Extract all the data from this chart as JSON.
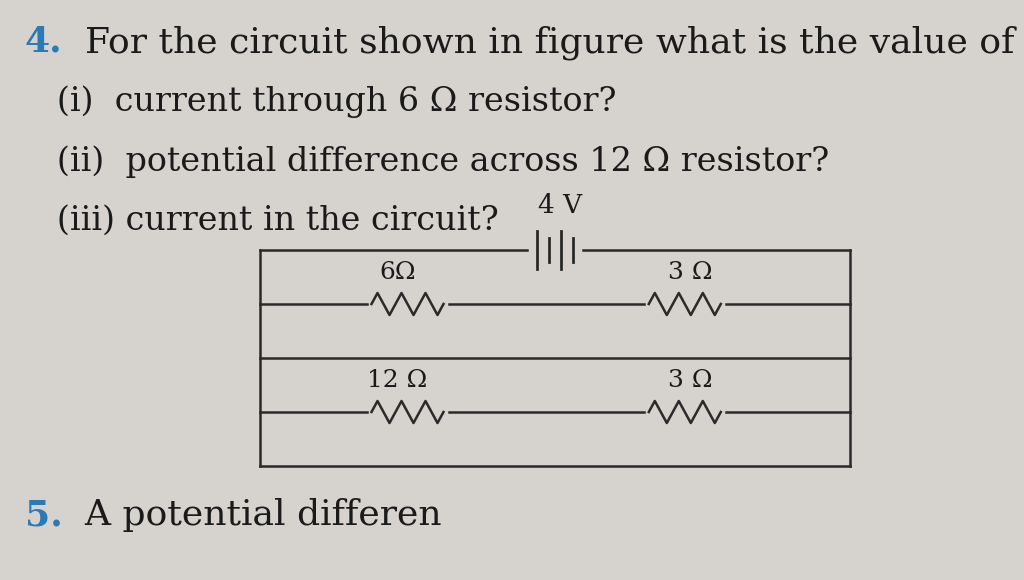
{
  "bg_color": "#d6d2ce",
  "text_color": "#1a1a1a",
  "number_color": "#2a7ab5",
  "question_number": "4.",
  "question_text": "  For the circuit shown in figure what is the value of",
  "sub_i": "   (i)  current through 6 Ω resistor?",
  "sub_ii": "   (ii)  potential difference across 12 Ω resistor?",
  "sub_iii": "   (iii) current in the circuit?",
  "battery_label": "4 V",
  "r1_label": "6Ω",
  "r2_label": "3 Ω",
  "r3_label": "12 Ω",
  "r4_label": "3 Ω",
  "next_number": "5.",
  "next_text": "  A potential differen",
  "font_size_main": 26,
  "font_size_sub": 24,
  "font_size_circuit": 18
}
